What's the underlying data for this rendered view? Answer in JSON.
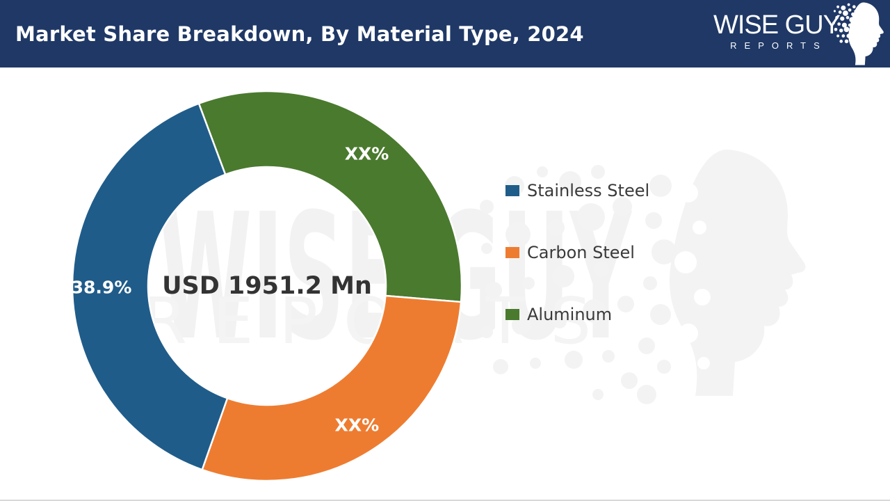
{
  "header": {
    "title": "Market Share Breakdown, By Material Type, 2024",
    "logo": {
      "name": "WISE GUY",
      "subtitle": "REPORTS"
    }
  },
  "watermark": {
    "line1": "WISE GUY",
    "line2": "REPORTS"
  },
  "chart_data": {
    "type": "pie",
    "variant": "donut",
    "title": "Market Share Breakdown, By Material Type, 2024",
    "center_label": "USD 1951.2 Mn",
    "start_angle_deg": -20.5,
    "legend_position": "right",
    "segments": [
      {
        "name": "Aluminum",
        "label": "XX%",
        "percent": 32.0,
        "color": "#4A7A2E"
      },
      {
        "name": "Carbon Steel",
        "label": "XX%",
        "percent": 29.1,
        "color": "#EE7C30"
      },
      {
        "name": "Stainless Steel",
        "label": "38.9%",
        "percent": 38.9,
        "color": "#1F5C8A"
      }
    ],
    "legend": [
      {
        "label": "Stainless Steel",
        "color": "#1F5C8A"
      },
      {
        "label": "Carbon Steel",
        "color": "#EE7C30"
      },
      {
        "label": "Aluminum",
        "color": "#4A7A2E"
      }
    ]
  },
  "colors": {
    "header_bg": "#1F3866",
    "center_text": "#333333",
    "legend_text": "#3a3a3a",
    "watermark": "#f2f2f2",
    "slice_label_text": "#ffffff"
  }
}
